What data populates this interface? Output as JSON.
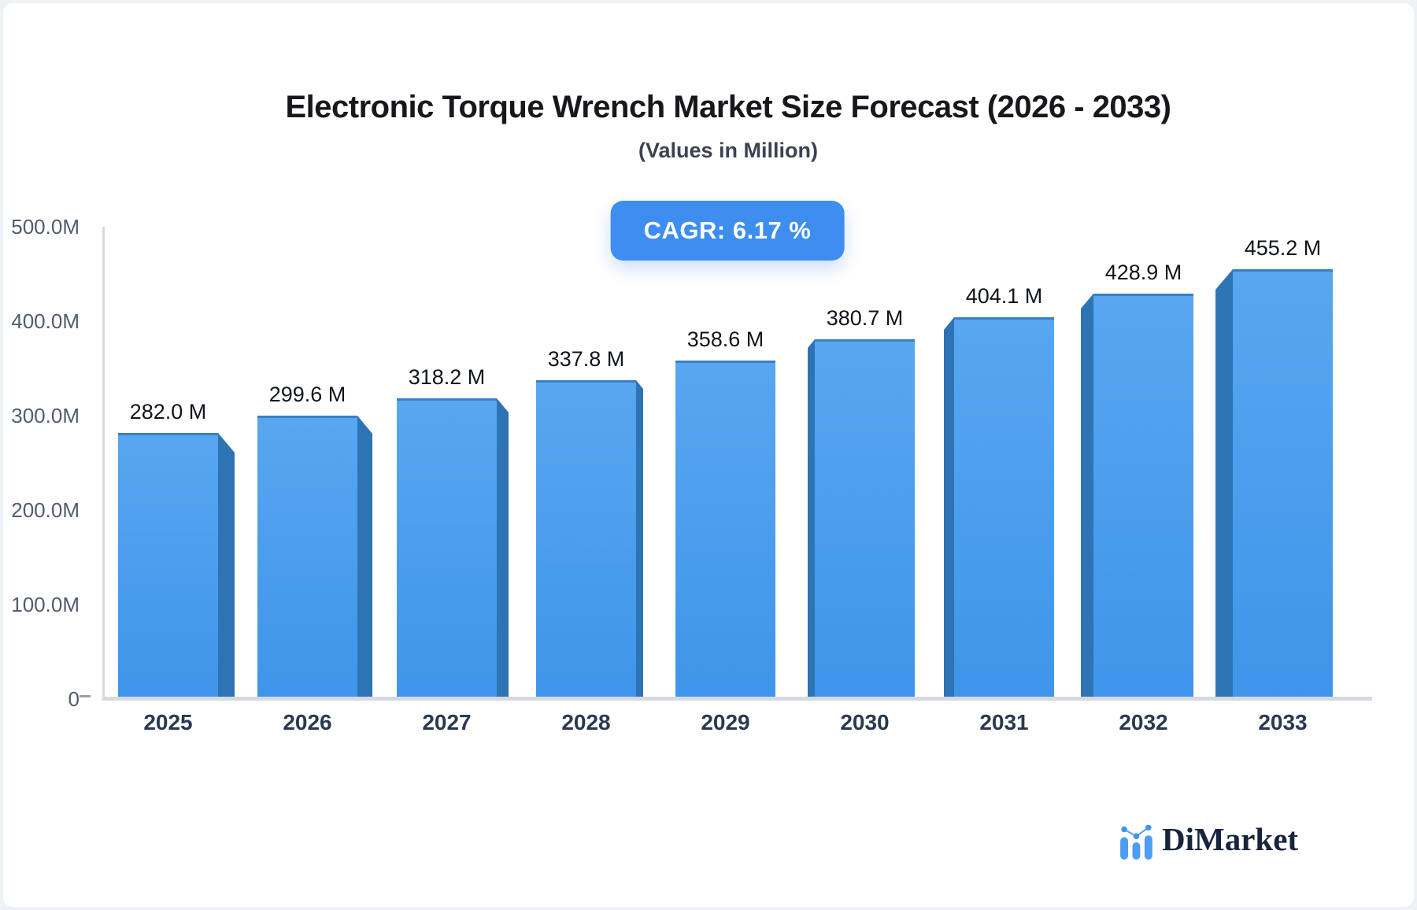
{
  "header": {
    "title": "Electronic Torque Wrench Market Size Forecast (2026 - 2033)",
    "subtitle": "(Values in Million)",
    "cagr_label": "CAGR: 6.17 %"
  },
  "footer": {
    "brand": "DiMarket",
    "logo_icon": "bar-chart-trend-icon"
  },
  "chart_data": {
    "type": "bar",
    "title": "Electronic Torque Wrench Market Size Forecast (2026 - 2033)",
    "subtitle": "(Values in Million)",
    "cagr_percent": 6.17,
    "categories": [
      "2025",
      "2026",
      "2027",
      "2028",
      "2029",
      "2030",
      "2031",
      "2032",
      "2033"
    ],
    "values": [
      282.0,
      299.6,
      318.2,
      337.8,
      358.6,
      380.7,
      404.1,
      428.9,
      455.2
    ],
    "bar_labels": [
      "282.0 M",
      "299.6 M",
      "318.2 M",
      "337.8 M",
      "358.6 M",
      "380.7 M",
      "404.1 M",
      "428.9 M",
      "455.2 M"
    ],
    "y_ticks": [
      {
        "label": "500.0M",
        "value": 500
      },
      {
        "label": "400.0M",
        "value": 400
      },
      {
        "label": "300.0M",
        "value": 300
      },
      {
        "label": "200.0M",
        "value": 200
      },
      {
        "label": "100.0M",
        "value": 100
      },
      {
        "label": "0",
        "value": 0
      }
    ],
    "ylim": [
      0,
      500
    ],
    "xlabel": "",
    "ylabel": "",
    "grid": "off",
    "legend": "none",
    "colors": {
      "bar_top": "#58a6f0",
      "bar_bottom": "#3f95ea",
      "bar_side": "#2e73b4",
      "bar_cap": "#3a7fc9",
      "badge_background": "#3d8eee",
      "badge_text": "#ffffff",
      "axis_line": "#d6d9df",
      "tick_text": "#525c6e",
      "category_text": "#2a3950",
      "value_text": "#10151c",
      "logo_blue": "#4d9df7",
      "logo_navy": "#17243e"
    }
  }
}
